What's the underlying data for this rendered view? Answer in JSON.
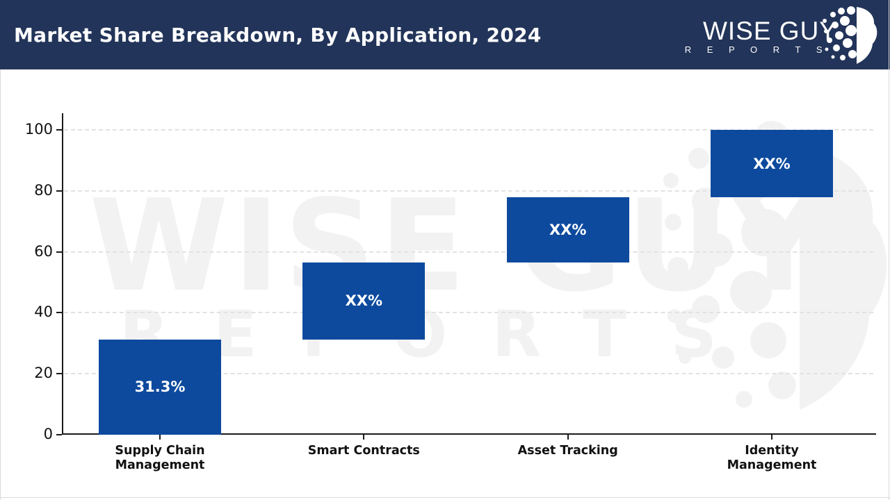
{
  "header": {
    "title": "Market Share Breakdown, By Application, 2024",
    "logo": {
      "name": "WISE GUY",
      "sub": "R E P O R T S"
    }
  },
  "watermark": {
    "name": "WISE GUY",
    "sub": "REPORTS"
  },
  "chart_data": {
    "type": "bar",
    "subtype": "waterfall",
    "title": "Market Share Breakdown, By Application, 2024",
    "categories": [
      "Supply Chain Management",
      "Smart Contracts",
      "Asset Tracking",
      "Identity Management"
    ],
    "segments": [
      {
        "category": "Supply Chain Management",
        "start": 0,
        "end": 31.3,
        "label": "31.3%"
      },
      {
        "category": "Smart Contracts",
        "start": 31.3,
        "end": 56.5,
        "label": "XX%"
      },
      {
        "category": "Asset Tracking",
        "start": 56.5,
        "end": 77.9,
        "label": "XX%"
      },
      {
        "category": "Identity Management",
        "start": 77.9,
        "end": 100,
        "label": "XX%"
      }
    ],
    "ylim": [
      0,
      100
    ],
    "yticks": [
      0,
      20,
      40,
      60,
      80,
      100
    ],
    "xlabel": "",
    "ylabel": "",
    "legend": "none",
    "grid": "horizontal-dashed",
    "bar_color": "#0d4a9e"
  },
  "colors": {
    "header_bg": "#223459",
    "bar": "#0d4a9e",
    "axis": "#1a1a1a",
    "gridline": "#e2e2e2",
    "watermark": "#f2f2f2",
    "label_text": "#111111",
    "bar_label_text": "#ffffff"
  }
}
